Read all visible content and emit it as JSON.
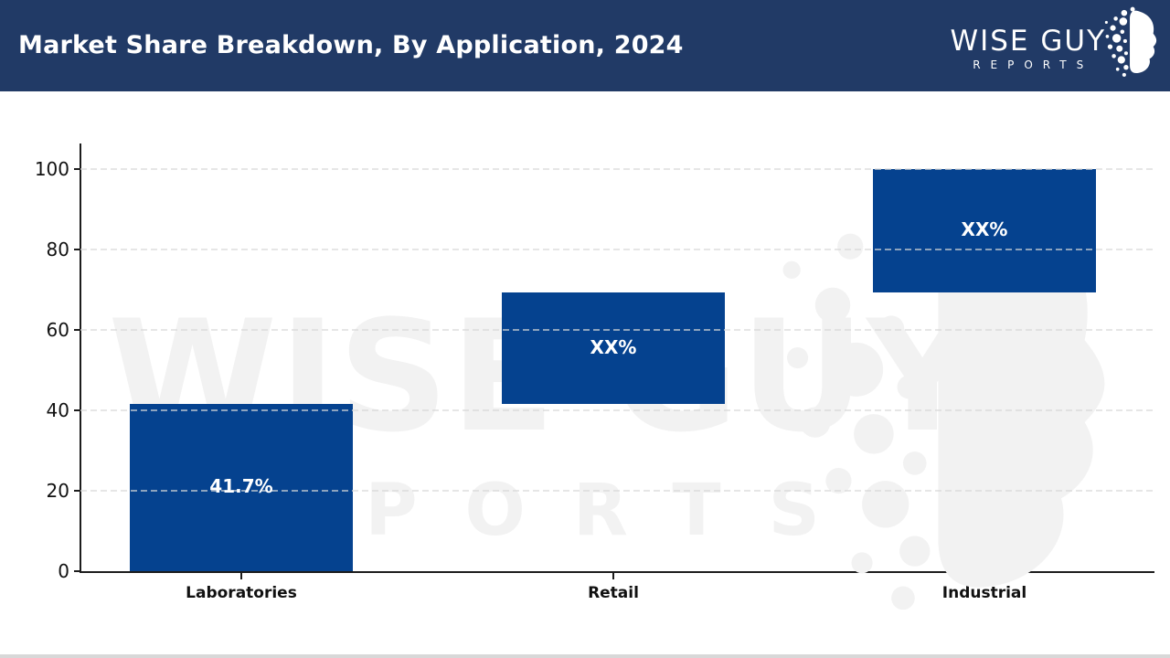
{
  "header": {
    "title": "Market Share Breakdown, By Application, 2024",
    "bg_color": "#213a66",
    "logo": {
      "line1": "WISE GUY",
      "line2": "REPORTS",
      "icon": "dotted-face-profile-icon"
    }
  },
  "watermark": {
    "line1": "WISE GUY",
    "line2": "REPORTS",
    "icon": "dotted-face-profile-icon"
  },
  "chart_data": {
    "type": "bar",
    "subtype": "floating-waterfall",
    "title": "Market Share Breakdown, By Application, 2024",
    "categories": [
      "Laboratories",
      "Retail",
      "Industrial"
    ],
    "segments": [
      {
        "category": "Laboratories",
        "start": 0,
        "end": 41.7,
        "label": "41.7%"
      },
      {
        "category": "Retail",
        "start": 41.7,
        "end": 69.4,
        "label": "XX%"
      },
      {
        "category": "Industrial",
        "start": 69.4,
        "end": 100,
        "label": "XX%"
      }
    ],
    "xlabel": "",
    "ylabel": "",
    "yticks": [
      0,
      20,
      40,
      60,
      80,
      100
    ],
    "ylim": [
      0,
      106
    ],
    "grid": "horizontal-dashed",
    "legend": "none",
    "bar_color": "#05428f",
    "bar_label_color": "#ffffff"
  }
}
